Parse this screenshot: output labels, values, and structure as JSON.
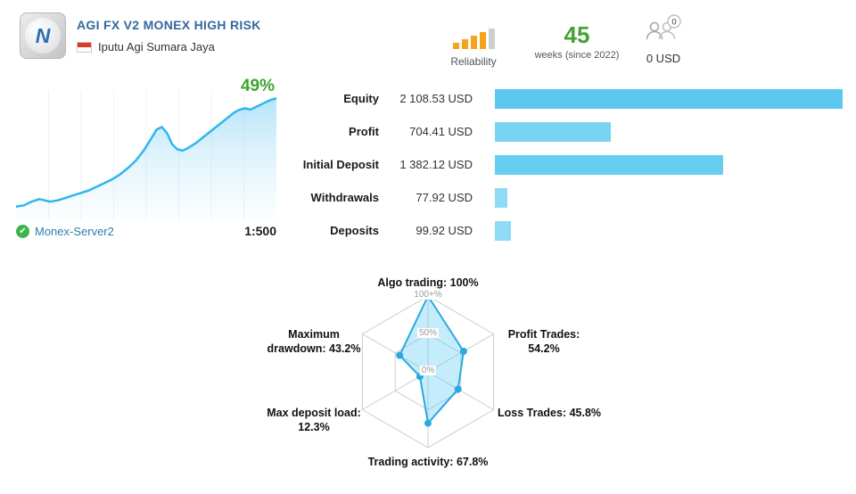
{
  "header": {
    "title": "AGI FX V2 MONEX HIGH RISK",
    "author": "Iputu Agi Sumara Jaya",
    "logo_letter": "N",
    "flag": "indonesia"
  },
  "stats": {
    "reliability": {
      "label": "Reliability",
      "bars": [
        {
          "h": 7,
          "color": "#F5A31A"
        },
        {
          "h": 11,
          "color": "#F5A31A"
        },
        {
          "h": 15,
          "color": "#F5A31A"
        },
        {
          "h": 19,
          "color": "#F5A31A"
        },
        {
          "h": 23,
          "color": "#CFCFCF"
        }
      ]
    },
    "age": {
      "value": "45",
      "label": "weeks (since 2022)"
    },
    "subscribers": {
      "badge": "0",
      "funds": "0 USD"
    }
  },
  "growth": {
    "percent": "49%",
    "server": "Monex-Server2",
    "leverage": "1:500"
  },
  "chart_data": [
    {
      "type": "area",
      "name": "growth-curve",
      "title": "Signal growth",
      "unit": "%",
      "ymax": 52,
      "final_value": 49,
      "line_color": "#2EB6EE",
      "x": [
        0,
        3,
        6,
        9,
        11,
        13,
        16,
        19,
        22,
        25,
        28,
        31,
        34,
        37,
        40,
        43,
        46,
        49,
        52,
        54,
        56,
        58,
        60,
        62,
        64,
        66,
        69,
        72,
        75,
        78,
        81,
        84,
        86,
        88,
        90,
        92,
        94,
        96,
        98,
        100
      ],
      "y": [
        5.5,
        6,
        7.5,
        8.5,
        8,
        7.5,
        8,
        9,
        10,
        11,
        12,
        13.5,
        15,
        16.5,
        18.5,
        21,
        24,
        28,
        33,
        36.5,
        37.5,
        35,
        30.5,
        28.5,
        28,
        29,
        31,
        33.5,
        36,
        38.5,
        41,
        43.5,
        44.5,
        45,
        44.5,
        45.5,
        46.5,
        47.5,
        48.5,
        49
      ]
    },
    {
      "type": "bar",
      "name": "balance-bars",
      "orientation": "horizontal",
      "categories": [
        "Equity",
        "Profit",
        "Initial Deposit",
        "Withdrawals",
        "Deposits"
      ],
      "values": [
        2108.53,
        704.41,
        1382.12,
        77.92,
        99.92
      ],
      "value_labels": [
        "2 108.53 USD",
        "704.41 USD",
        "1 382.12 USD",
        "77.92 USD",
        "99.92 USD"
      ],
      "colors": [
        "#5CC8F0",
        "#7AD3F3",
        "#68CEF1",
        "#8FDAF5",
        "#8FDAF5"
      ],
      "xmax": 2108.53
    },
    {
      "type": "radar",
      "name": "trade-stats-radar",
      "max": 100,
      "grid_color": "#CCCCCC",
      "stroke_color": "#2AA9E0",
      "fill_color": "rgba(110,207,243,0.4)",
      "axes": [
        "Algo trading",
        "Profit Trades",
        "Loss Trades",
        "Trading activity",
        "Max deposit load",
        "Maximum drawdown"
      ],
      "values": [
        100,
        54.2,
        45.8,
        67.8,
        12.3,
        43.2
      ],
      "axis_labels": [
        "Algo trading: 100%",
        "Profit Trades:\n54.2%",
        "Loss Trades: 45.8%",
        "Trading activity: 67.8%",
        "Max deposit load:\n12.3%",
        "Maximum\ndrawdown: 43.2%"
      ],
      "ring_labels": [
        "100+%",
        "50%",
        "0%"
      ]
    }
  ]
}
